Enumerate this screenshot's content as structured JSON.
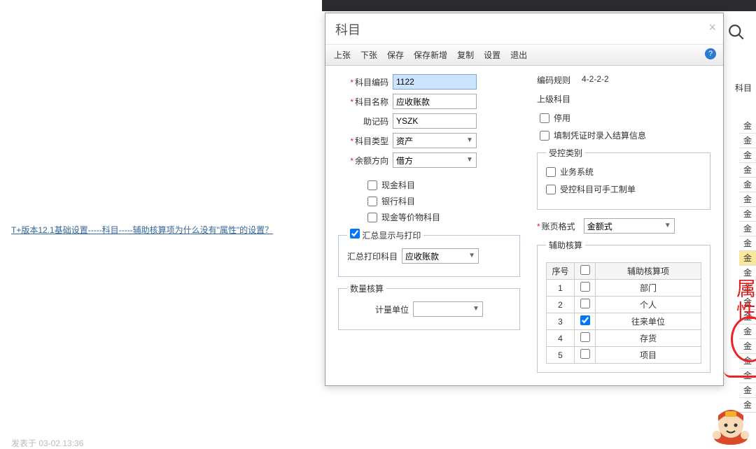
{
  "page": {
    "link_text": "T+版本12.1基础设置-----科目-----辅助核算项为什么没有\"属性\"的设置？",
    "post_meta": "发表于  03-02 13:36",
    "bg_label": "科目",
    "side_amount_char": "金",
    "side_count": 20,
    "side_highlight_index": 9,
    "annotation_text": "属性"
  },
  "dialog": {
    "title": "科目",
    "toolbar": [
      "上张",
      "下张",
      "保存",
      "保存新增",
      "复制",
      "设置",
      "退出"
    ],
    "left": {
      "code_label": "科目编码",
      "code_value": "1122",
      "name_label": "科目名称",
      "name_value": "应收账款",
      "mnemonic_label": "助记码",
      "mnemonic_value": "YSZK",
      "type_label": "科目类型",
      "type_value": "资产",
      "balance_label": "余额方向",
      "balance_value": "借方",
      "checks": [
        "现金科目",
        "银行科目",
        "现金等价物科目"
      ],
      "summary_fieldset": {
        "legend_checked": true,
        "legend_label": "汇总显示与打印",
        "print_label": "汇总打印科目",
        "print_value": "应收账款"
      },
      "qty_fieldset": {
        "legend": "数量核算",
        "unit_label": "计量单位",
        "unit_value": ""
      }
    },
    "right": {
      "rule_label": "编码规则",
      "rule_value": "4-2-2-2",
      "parent_label": "上级科目",
      "parent_value": "",
      "check_disabled": "停用",
      "check_fill": "填制凭证时录入结算信息",
      "controlled_fieldset": {
        "legend": "受控类别",
        "items": [
          "业务系统",
          "受控科目可手工制单"
        ]
      },
      "page_format_label": "账页格式",
      "page_format_value": "金额式",
      "aux_fieldset": {
        "legend": "辅助核算",
        "headers": [
          "序号",
          "",
          "辅助核算项"
        ],
        "rows": [
          {
            "n": "1",
            "checked": false,
            "label": "部门"
          },
          {
            "n": "2",
            "checked": false,
            "label": "个人"
          },
          {
            "n": "3",
            "checked": true,
            "label": "往来单位"
          },
          {
            "n": "4",
            "checked": false,
            "label": "存货"
          },
          {
            "n": "5",
            "checked": false,
            "label": "项目"
          }
        ]
      }
    }
  }
}
